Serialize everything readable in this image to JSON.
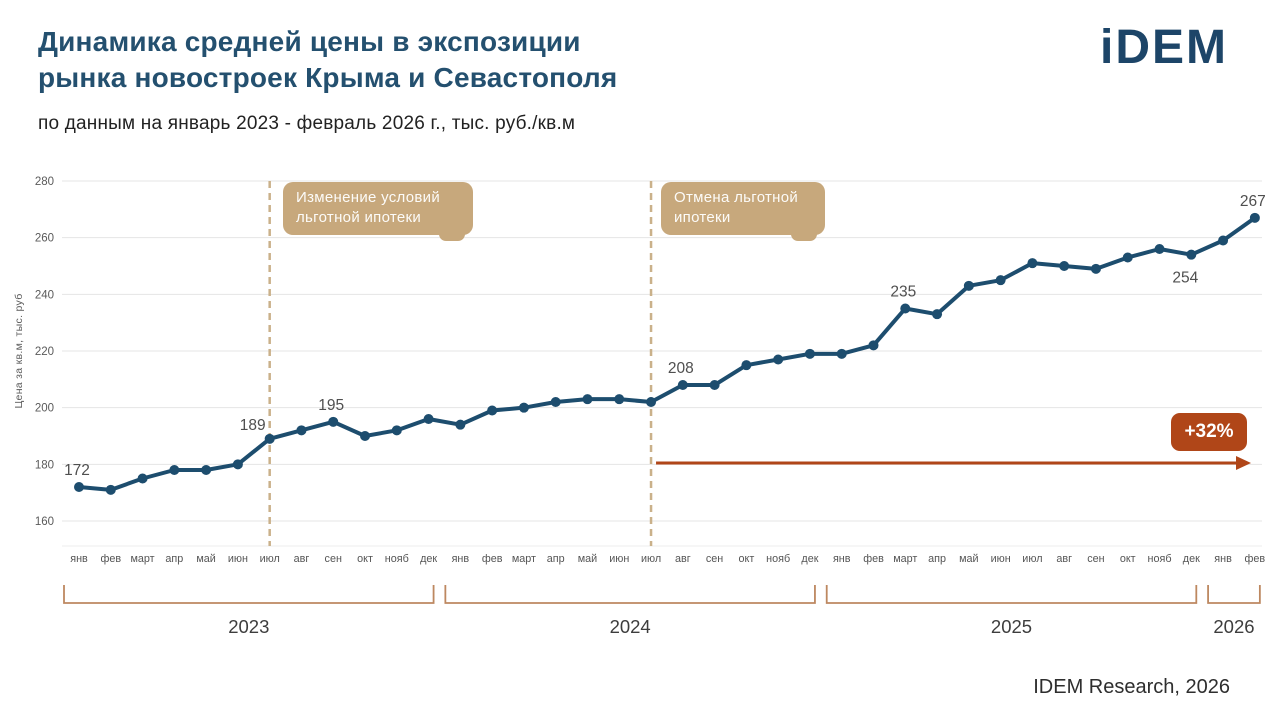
{
  "header": {
    "title_line1": "Динамика средней цены в экспозиции",
    "title_line2": "рынка новостроек Крыма и Севастополя",
    "subtitle": "по данным на январь 2023 - февраль 2026 г., тыс. руб./кв.м",
    "logo": "iDEM"
  },
  "footer": {
    "source": "IDEM Research, 2026"
  },
  "chart_data": {
    "type": "line",
    "title": "Динамика средней цены в экспозиции рынка новостроек Крыма и Севастополя",
    "ylabel": "Цена за кв.м, тыс. руб",
    "ylim": [
      160,
      280
    ],
    "yticks": [
      160,
      180,
      200,
      220,
      240,
      260,
      280
    ],
    "months": [
      "янв",
      "фев",
      "март",
      "апр",
      "май",
      "июн",
      "июл",
      "авг",
      "сен",
      "окт",
      "нояб",
      "дек",
      "янв",
      "фев",
      "март",
      "апр",
      "май",
      "июн",
      "июл",
      "авг",
      "сен",
      "окт",
      "нояб",
      "дек",
      "янв",
      "фев",
      "март",
      "апр",
      "май",
      "июн",
      "июл",
      "авг",
      "сен",
      "окт",
      "нояб",
      "дек",
      "янв",
      "фев"
    ],
    "years": [
      {
        "label": "2023",
        "start": 0,
        "end": 11
      },
      {
        "label": "2024",
        "start": 12,
        "end": 23
      },
      {
        "label": "2025",
        "start": 24,
        "end": 35
      },
      {
        "label": "2026",
        "start": 36,
        "end": 37
      }
    ],
    "values": [
      172,
      171,
      175,
      178,
      178,
      180,
      189,
      192,
      195,
      190,
      192,
      196,
      194,
      199,
      200,
      202,
      203,
      203,
      202,
      208,
      208,
      215,
      217,
      219,
      219,
      222,
      235,
      233,
      243,
      245,
      251,
      250,
      249,
      253,
      256,
      254,
      259,
      267
    ],
    "point_labels": [
      {
        "index": 0,
        "text": "172",
        "pos": "above"
      },
      {
        "index": 6,
        "text": "189",
        "pos": "above-left"
      },
      {
        "index": 8,
        "text": "195",
        "pos": "above"
      },
      {
        "index": 19,
        "text": "208",
        "pos": "above"
      },
      {
        "index": 26,
        "text": "235",
        "pos": "above"
      },
      {
        "index": 35,
        "text": "254",
        "pos": "below"
      },
      {
        "index": 37,
        "text": "267",
        "pos": "above"
      }
    ],
    "event_lines": [
      {
        "index": 6,
        "label": "Изменение условий льготной ипотеки"
      },
      {
        "index": 18,
        "label": "Отмена льготной ипотеки"
      }
    ],
    "growth_arrow": {
      "from_index": 18,
      "label": "+32%"
    },
    "legend_position": "none",
    "grid": "horizontal",
    "line_color": "#1d4d6e",
    "annotation_color": "#c7a87c",
    "dash_color": "#cab18a",
    "arrow_color": "#b04618",
    "bracket_color": "#bd8860"
  }
}
